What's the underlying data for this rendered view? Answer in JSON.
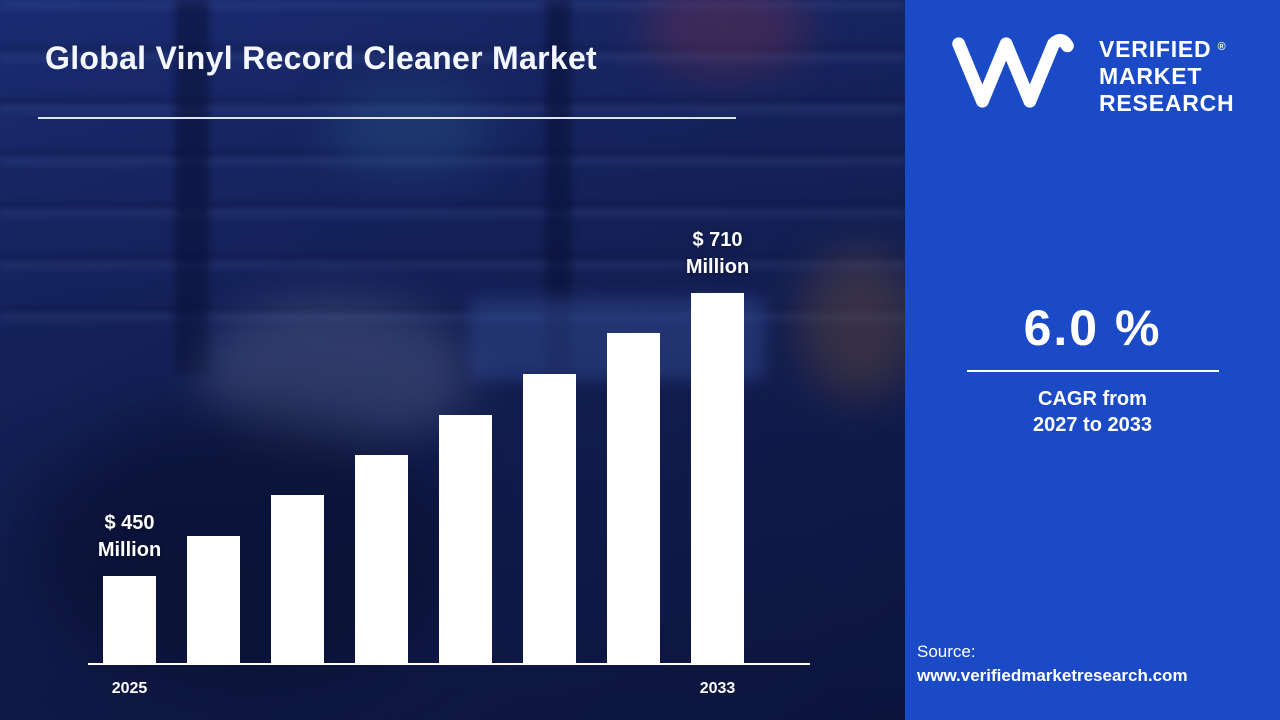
{
  "title": "Global Vinyl Record Cleaner Market",
  "brand": {
    "name_lines": [
      "VERIFIED",
      "MARKET",
      "RESEARCH"
    ],
    "registered": "®"
  },
  "kpi": {
    "value": "6.0 %",
    "label_line1": "CAGR from",
    "label_line2": "2027 to 2033"
  },
  "source": {
    "label": "Source:",
    "url": "www.verifiedmarketresearch.com"
  },
  "chart_data": {
    "type": "bar",
    "title": "Global Vinyl Record Cleaner Market",
    "unit": "USD Million",
    "x_tick_labels": [
      "2025",
      "2033"
    ],
    "first_year": "2025",
    "last_year": "2033",
    "values": [
      450,
      487,
      524,
      561,
      598,
      636,
      673,
      710
    ],
    "annotations": {
      "first_value": {
        "line1": "$ 450",
        "line2": "Million"
      },
      "last_value": {
        "line1": "$ 710",
        "line2": "Million"
      }
    },
    "bar_color": "#ffffff",
    "ylim": [
      370,
      710
    ],
    "grid": false,
    "legend": false
  },
  "colors": {
    "right_panel": "#1b4ac6",
    "left_background": "#14235f",
    "text": "#ffffff"
  }
}
